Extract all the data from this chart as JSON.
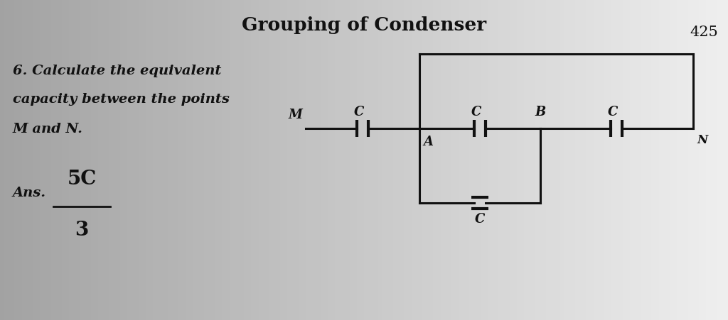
{
  "title": "Grouping of Condenser",
  "page_number": "425",
  "problem_text_line1": "Calculate the equivalent",
  "problem_text_line2": "capacity between the points",
  "problem_text_line3": "M and N.",
  "ans_label": "Ans.",
  "ans_numerator": "5C",
  "ans_denominator": "3",
  "bg_color": "#e8e8e8",
  "text_color": "#111111",
  "circuit_color": "#111111",
  "M_label": "M",
  "N_label": "N",
  "A_label": "A",
  "B_label": "B"
}
